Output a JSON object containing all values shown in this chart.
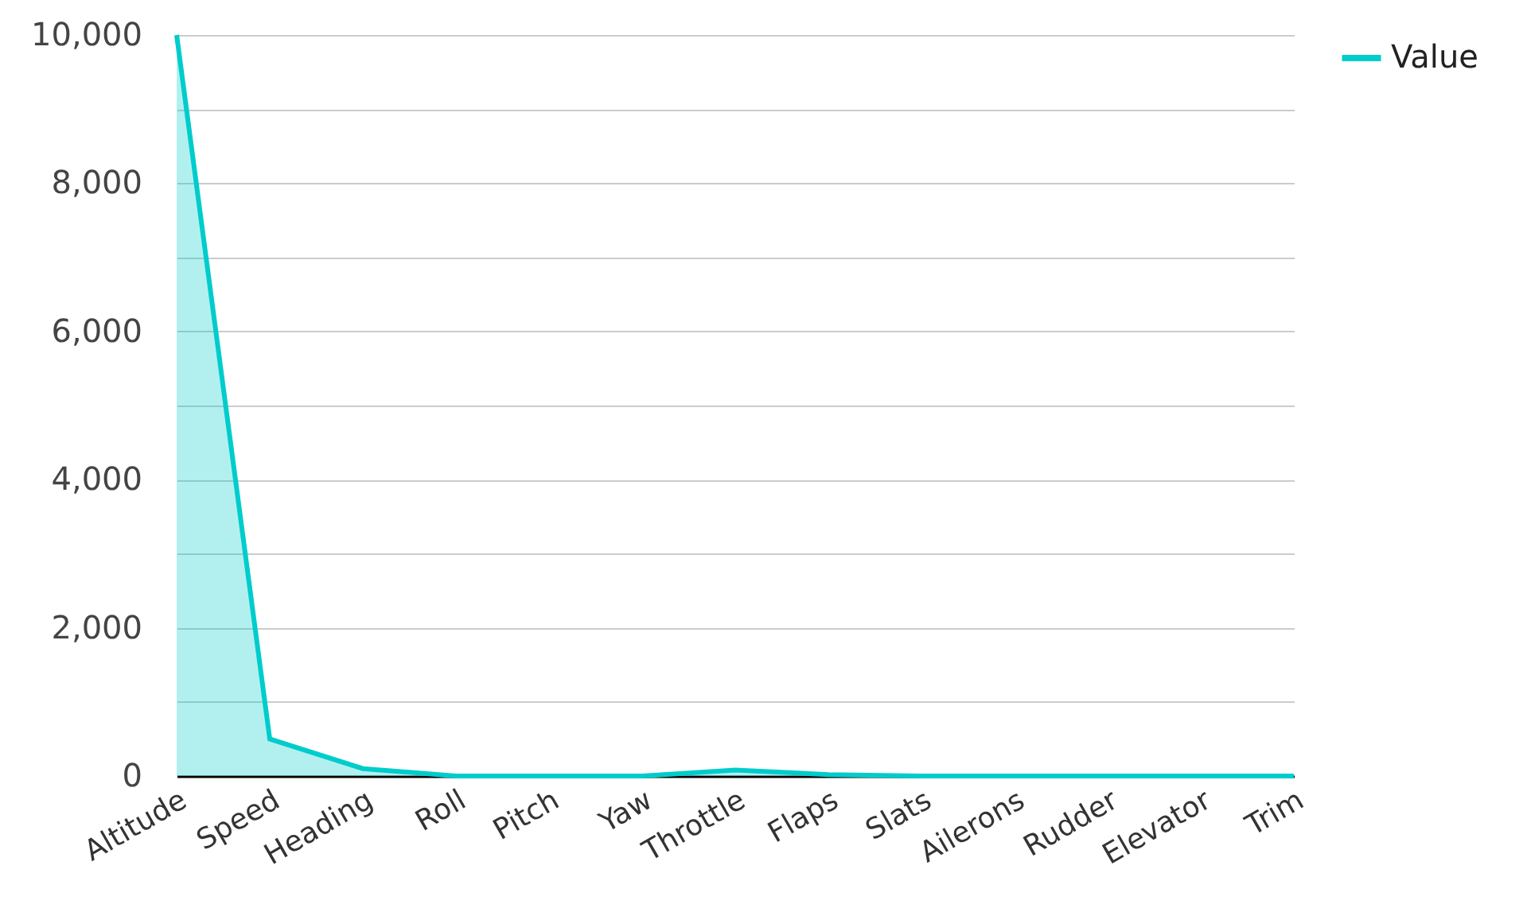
{
  "chart_data": {
    "type": "area",
    "categories": [
      "Altitude",
      "Speed",
      "Heading",
      "Roll",
      "Pitch",
      "Yaw",
      "Throttle",
      "Flaps",
      "Slats",
      "Ailerons",
      "Rudder",
      "Elevator",
      "Trim"
    ],
    "series": [
      {
        "name": "Value",
        "color": "#00cccc",
        "values": [
          10000,
          500,
          100,
          0,
          0,
          0,
          80,
          20,
          0,
          0,
          0,
          0,
          0
        ]
      }
    ],
    "ylim": [
      0,
      10000
    ],
    "yticks": [
      0,
      {
        "value": 1000,
        "label": null
      },
      {
        "value": 2000,
        "label": "2,000"
      },
      {
        "value": 3000,
        "label": null
      },
      {
        "value": 4000,
        "label": "4,000"
      },
      {
        "value": 5000,
        "label": null
      },
      {
        "value": 6000,
        "label": "6,000"
      },
      {
        "value": 7000,
        "label": null
      },
      {
        "value": 8000,
        "label": "8,000"
      },
      {
        "value": 9000,
        "label": null
      },
      {
        "value": 10000,
        "label": "10,000"
      }
    ],
    "grid": "y",
    "legend": "top right"
  }
}
